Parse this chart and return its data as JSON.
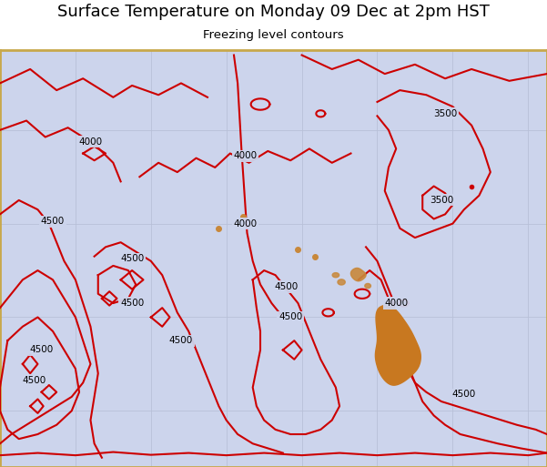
{
  "title": "Surface Temperature on Monday 09 Dec at 2pm HST",
  "subtitle": "Freezing level contours",
  "map_bg_color": "#ccd4ec",
  "border_color": "#c8a84b",
  "contour_color": "#cc0000",
  "grid_color": "#b8c0d8",
  "title_fontsize": 13,
  "subtitle_fontsize": 9.5,
  "fig_width": 6.01,
  "fig_height": 5.13,
  "lon_min": -166.0,
  "lon_max": -151.5,
  "lat_min": 16.8,
  "lat_max": 25.7,
  "big_island_color": "#c87820",
  "island_color": "#c8883a"
}
